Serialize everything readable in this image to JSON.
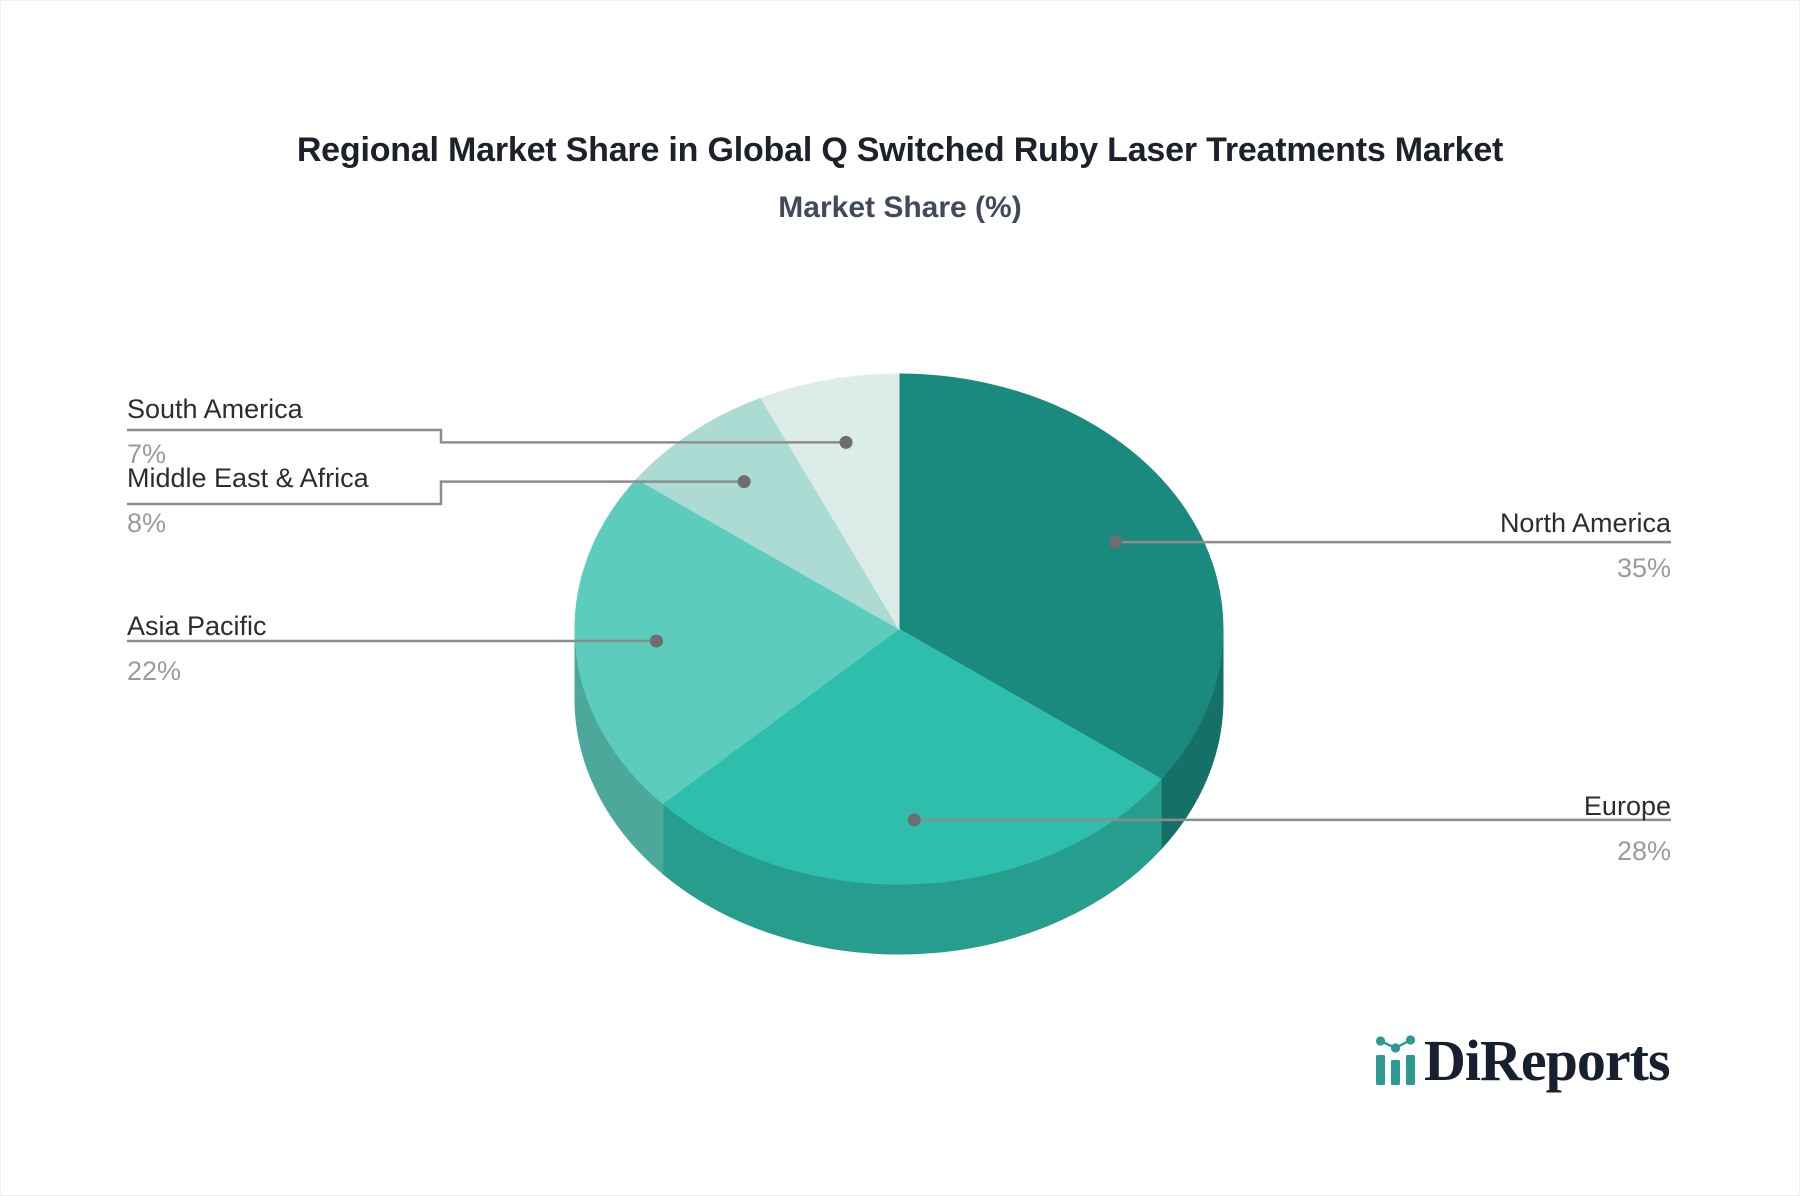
{
  "title": "Regional Market Share in Global Q Switched Ruby Laser Treatments Market",
  "subtitle": "Market Share (%)",
  "chart_data": {
    "type": "pie",
    "style": "3d",
    "start_angle_deg": 90,
    "direction": "clockwise",
    "unit": "%",
    "labels": [
      "North America",
      "Europe",
      "Asia Pacific",
      "Middle East & Africa",
      "South America"
    ],
    "values": [
      35,
      28,
      22,
      8,
      7
    ],
    "colors": [
      "#1a8a7e",
      "#2ebfac",
      "#5ccdbc",
      "#abdbd3",
      "#dcece9"
    ],
    "callout_line_color": "#8d8d8d",
    "callout_dot_color": "#6e6e6e",
    "legend_position": "callout-labels",
    "title": "Regional Market Share in Global Q Switched Ruby Laser Treatments Market",
    "subtitle": "Market Share (%)"
  },
  "callouts": {
    "north_america": {
      "label": "North America",
      "value": "35%"
    },
    "europe": {
      "label": "Europe",
      "value": "28%"
    },
    "asia_pacific": {
      "label": "Asia Pacific",
      "value": "22%"
    },
    "middle_east_africa": {
      "label": "Middle East & Africa",
      "value": "8%"
    },
    "south_america": {
      "label": "South America",
      "value": "7%"
    }
  },
  "logo": {
    "text": "DiReports",
    "icon_color": "#2d9a92",
    "text_color": "#16202e"
  }
}
